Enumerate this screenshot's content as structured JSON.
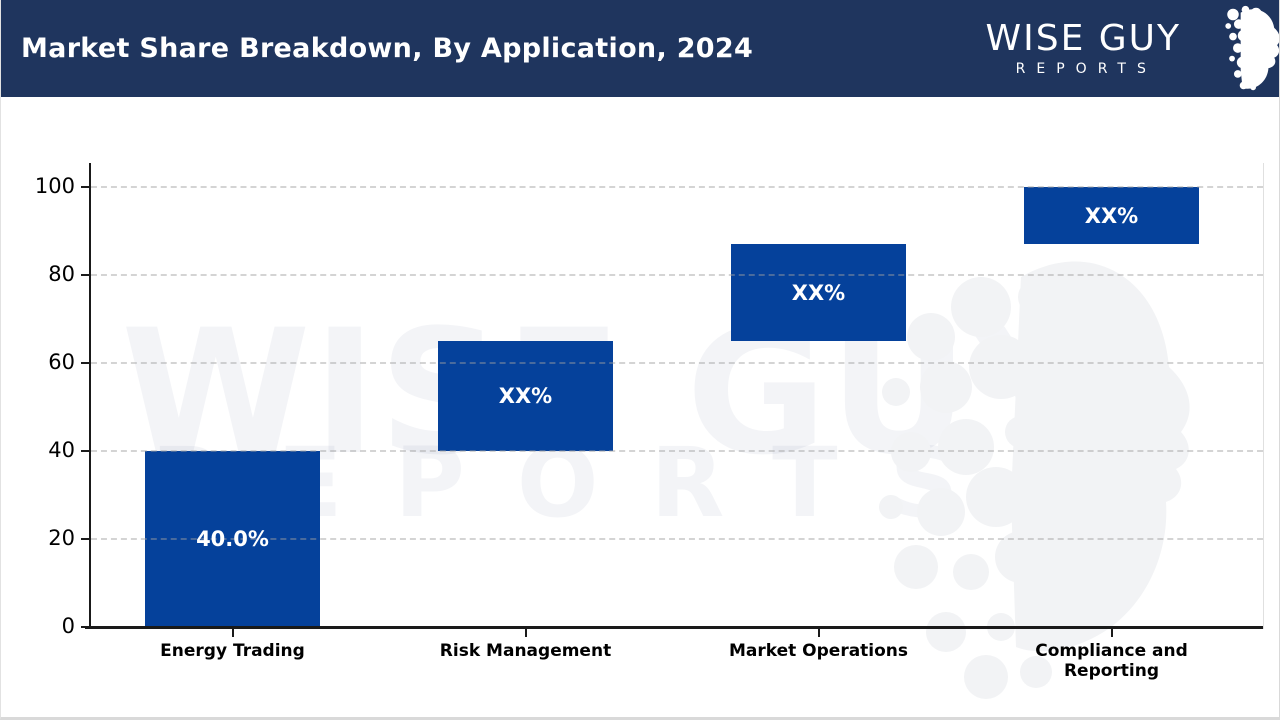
{
  "header": {
    "title": "Market Share Breakdown, By Application, 2024",
    "bg_color": "#1f355e",
    "logo": {
      "wordmark": "WISE GUY",
      "subtext": "REPORTS"
    }
  },
  "watermark": {
    "line1": "WISE GUY",
    "line2": "REPORTS"
  },
  "chart_data": {
    "type": "bar",
    "subtype": "floating-segment-waterfall",
    "title": "Market Share Breakdown, By Application, 2024",
    "categories": [
      "Energy Trading",
      "Risk Management",
      "Market Operations",
      "Compliance and Reporting"
    ],
    "segments": [
      {
        "category": "Energy Trading",
        "start": 0,
        "end": 40,
        "label": "40.0%"
      },
      {
        "category": "Risk Management",
        "start": 40,
        "end": 65,
        "label": "XX%"
      },
      {
        "category": "Market Operations",
        "start": 65,
        "end": 87,
        "label": "XX%"
      },
      {
        "category": "Compliance and Reporting",
        "start": 87,
        "end": 100,
        "label": "XX%"
      }
    ],
    "xlabel": "",
    "ylabel": "",
    "ylim": [
      0,
      100
    ],
    "yticks": [
      0,
      20,
      40,
      60,
      80,
      100
    ],
    "bar_color": "#05419b",
    "grid": "horizontal-dashed",
    "gridline_color": "#a0a0a0",
    "legend": "none"
  }
}
